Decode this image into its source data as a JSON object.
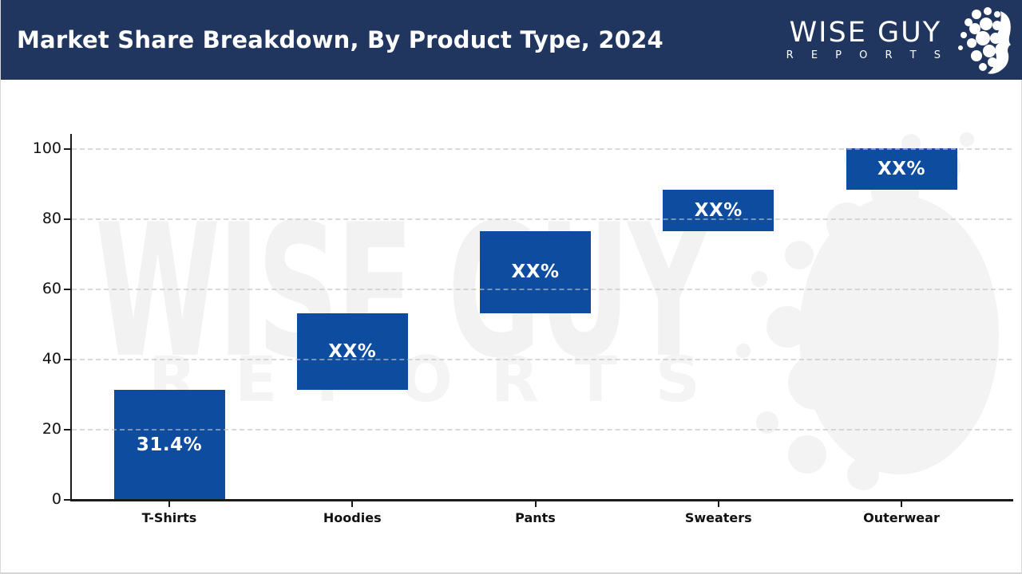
{
  "header": {
    "title": "Market Share Breakdown, By Product Type, 2024",
    "logo": {
      "line1": "WISE GUY",
      "line2": "R E P O R T S"
    }
  },
  "watermark": {
    "line1": "WISE GUY",
    "line2": "REPORTS"
  },
  "chart_data": {
    "type": "bar",
    "subtype": "waterfall-floating-bars",
    "title": "Market Share Breakdown, By Product Type, 2024",
    "categories": [
      "T-Shirts",
      "Hoodies",
      "Pants",
      "Sweaters",
      "Outerwear"
    ],
    "segments": [
      {
        "category": "T-Shirts",
        "start": 0,
        "end": 31.4,
        "label": "31.4%"
      },
      {
        "category": "Hoodies",
        "start": 31.4,
        "end": 53.2,
        "label": "XX%"
      },
      {
        "category": "Pants",
        "start": 53.2,
        "end": 76.6,
        "label": "XX%"
      },
      {
        "category": "Sweaters",
        "start": 76.6,
        "end": 88.4,
        "label": "XX%"
      },
      {
        "category": "Outerwear",
        "start": 88.4,
        "end": 100.3,
        "label": "XX%"
      }
    ],
    "xlabel": "",
    "ylabel": "",
    "ylim": [
      0,
      100
    ],
    "yticks": [
      0,
      20,
      40,
      60,
      80,
      100
    ],
    "grid": "horizontal-dashed",
    "legend": "none",
    "bar_color": "#0d4c9f",
    "bar_label_color": "#ffffff",
    "axis_color": "#1a1a1a",
    "grid_color": "#d8d8d8"
  },
  "colors": {
    "header_bg": "#21365f",
    "accent_blue": "#0d4c9f",
    "watermark_gray": "#f2f2f2"
  }
}
